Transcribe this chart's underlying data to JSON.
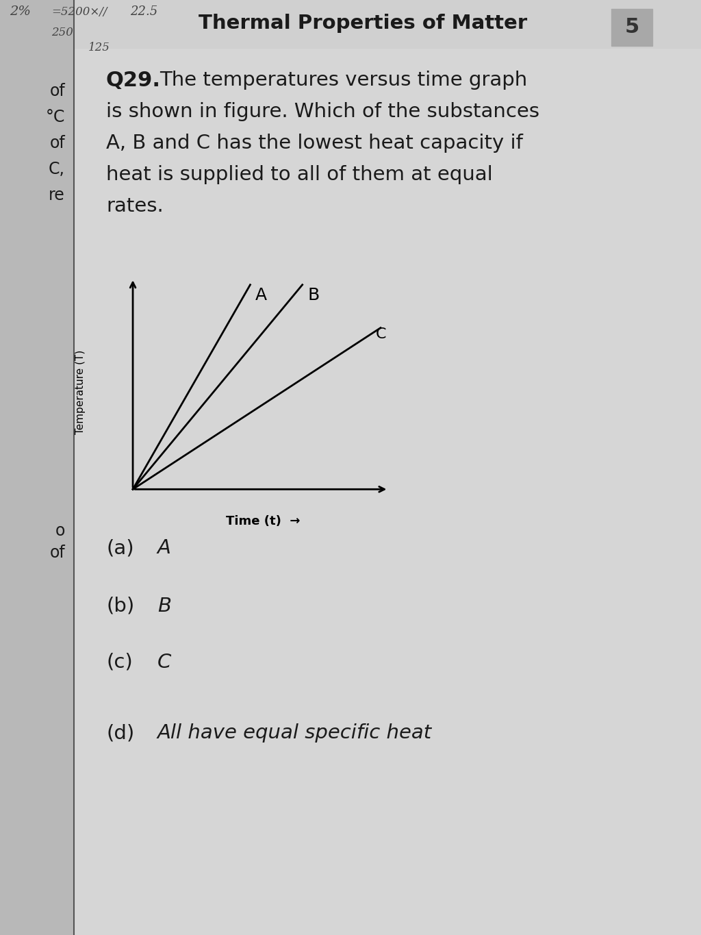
{
  "bg_color": "#c8c8c8",
  "page_bg": "#d4d4d4",
  "header_text": "Thermal Properties of Matter",
  "header_num": "5",
  "left_text": [
    "of",
    "°C",
    "of",
    "C,",
    "re"
  ],
  "left_bottom_text": [
    "o",
    "of"
  ],
  "question_line1_bold": "Q29.",
  "question_line1_rest": " The temperatures versus time graph",
  "question_lines": [
    "is shown in figure. Which of the substances",
    "A, B and C has the lowest heat capacity if",
    "heat is supplied to all of them at equal",
    "rates."
  ],
  "options": [
    [
      "(a)",
      "A"
    ],
    [
      "(b)",
      "B"
    ],
    [
      "(c)",
      "C"
    ],
    [
      "(d)",
      "All have equal specific heat"
    ]
  ],
  "graph_xlabel": "Time (t)",
  "graph_ylabel": "Temperature (T)",
  "text_color": "#1a1a1a",
  "line_color": "#1a1a1a",
  "left_strip_color": "#b8b8b8",
  "separator_line_color": "#555555",
  "graph_bg": "#d4d4d4",
  "header_bg": "#d0d0d0",
  "num_box_color": "#a8a8a8"
}
